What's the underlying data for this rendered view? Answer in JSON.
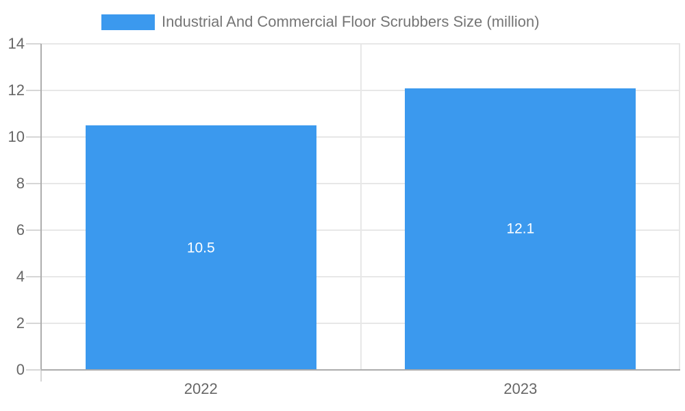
{
  "legend": {
    "label": "Industrial And Commercial Floor Scrubbers Size (million)"
  },
  "chart_data": {
    "type": "bar",
    "title": "",
    "categories": [
      "2022",
      "2023"
    ],
    "series": [
      {
        "name": "Industrial And Commercial Floor Scrubbers Size (million)",
        "values": [
          10.5,
          12.1
        ],
        "color": "#3B99EE"
      }
    ],
    "value_labels": [
      "10.5",
      "12.1"
    ],
    "value_label_position": "inside-center",
    "xlabel": "",
    "ylabel": "",
    "ylim": [
      0,
      14
    ],
    "yticks": [
      0,
      2,
      4,
      6,
      8,
      10,
      12,
      14
    ],
    "grid": true,
    "legend_position": "top-center"
  },
  "colors": {
    "bar": "#3B99EE",
    "background": "#FFFFFF",
    "gridline": "#E7E7E7",
    "axis_line": "#ADADAD",
    "baseline": "#ABABAB",
    "outer_tick": "#D6D6D6",
    "axis_label": "#666666",
    "legend_text": "#757575",
    "value_label": "#FFFFFF"
  }
}
